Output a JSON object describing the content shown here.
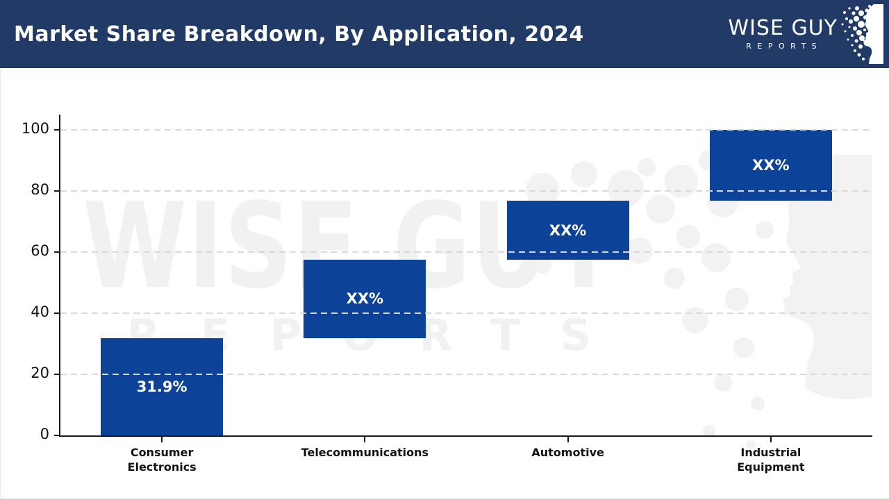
{
  "header": {
    "title": "Market Share Breakdown, By Application, 2024",
    "bg_color": "#213a66",
    "logo": {
      "primary": "WISE GUY",
      "secondary": "REPORTS"
    }
  },
  "watermark": {
    "primary": "WISE GUY",
    "secondary": "REPORTS"
  },
  "chart_data": {
    "type": "bar",
    "subtype": "waterfall",
    "title": "Market Share Breakdown, By Application, 2024",
    "categories": [
      "Consumer Electronics",
      "Telecommunications",
      "Automotive",
      "Industrial Equipment"
    ],
    "category_lines": [
      [
        "Consumer",
        "Electronics"
      ],
      [
        "Telecommunications"
      ],
      [
        "Automotive"
      ],
      [
        "Industrial",
        "Equipment"
      ]
    ],
    "series": [
      {
        "name": "Market Share %",
        "segments": [
          {
            "category": "Consumer Electronics",
            "start": 0,
            "end": 31.9,
            "label": "31.9%"
          },
          {
            "category": "Telecommunications",
            "start": 31.9,
            "end": 57.5,
            "label": "XX%"
          },
          {
            "category": "Automotive",
            "start": 57.5,
            "end": 76.8,
            "label": "XX%"
          },
          {
            "category": "Industrial Equipment",
            "start": 76.8,
            "end": 100,
            "label": "XX%"
          }
        ]
      }
    ],
    "yticks": [
      0,
      20,
      40,
      60,
      80,
      100
    ],
    "ylim": [
      0,
      105
    ],
    "xlabel": "",
    "ylabel": "",
    "grid": true,
    "legend": false,
    "bar_color": "#0c4398",
    "bar_label_color": "#ffffff",
    "axis_color": "#1a1a1a",
    "grid_color": "#d9d9d9"
  }
}
